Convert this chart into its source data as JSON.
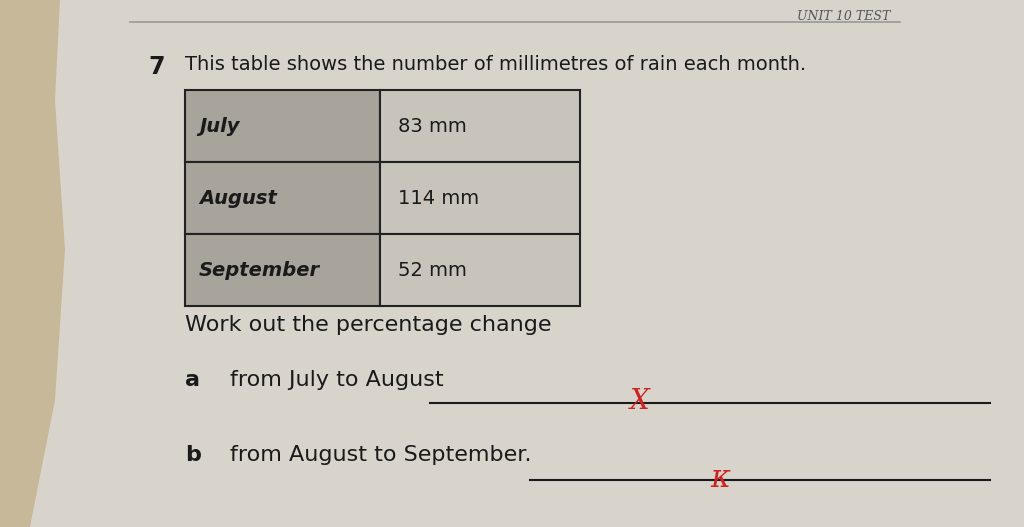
{
  "question_number": "7",
  "question_text": "This table shows the number of millimetres of rain each month.",
  "header_text": "UNIT 10 TEST",
  "table_months": [
    "July",
    "August",
    "September"
  ],
  "table_values": [
    "83 mm",
    "114 mm",
    "52 mm"
  ],
  "instruction": "Work out the percentage change",
  "part_a_label": "a",
  "part_a_text": "from July to August",
  "part_b_label": "b",
  "part_b_text": "from August to September.",
  "cross_a_color": "#cc2222",
  "cross_b_color": "#cc2222",
  "bg_left_color": "#c8b89a",
  "bg_right_color": "#c8b89a",
  "paper_color": "#d8d4cc",
  "table_bg_left": "#a8a49c",
  "table_bg_right": "#c8c4bc",
  "line_color": "#222222",
  "text_color": "#1a1a1a",
  "spine_color": "#b8a888"
}
